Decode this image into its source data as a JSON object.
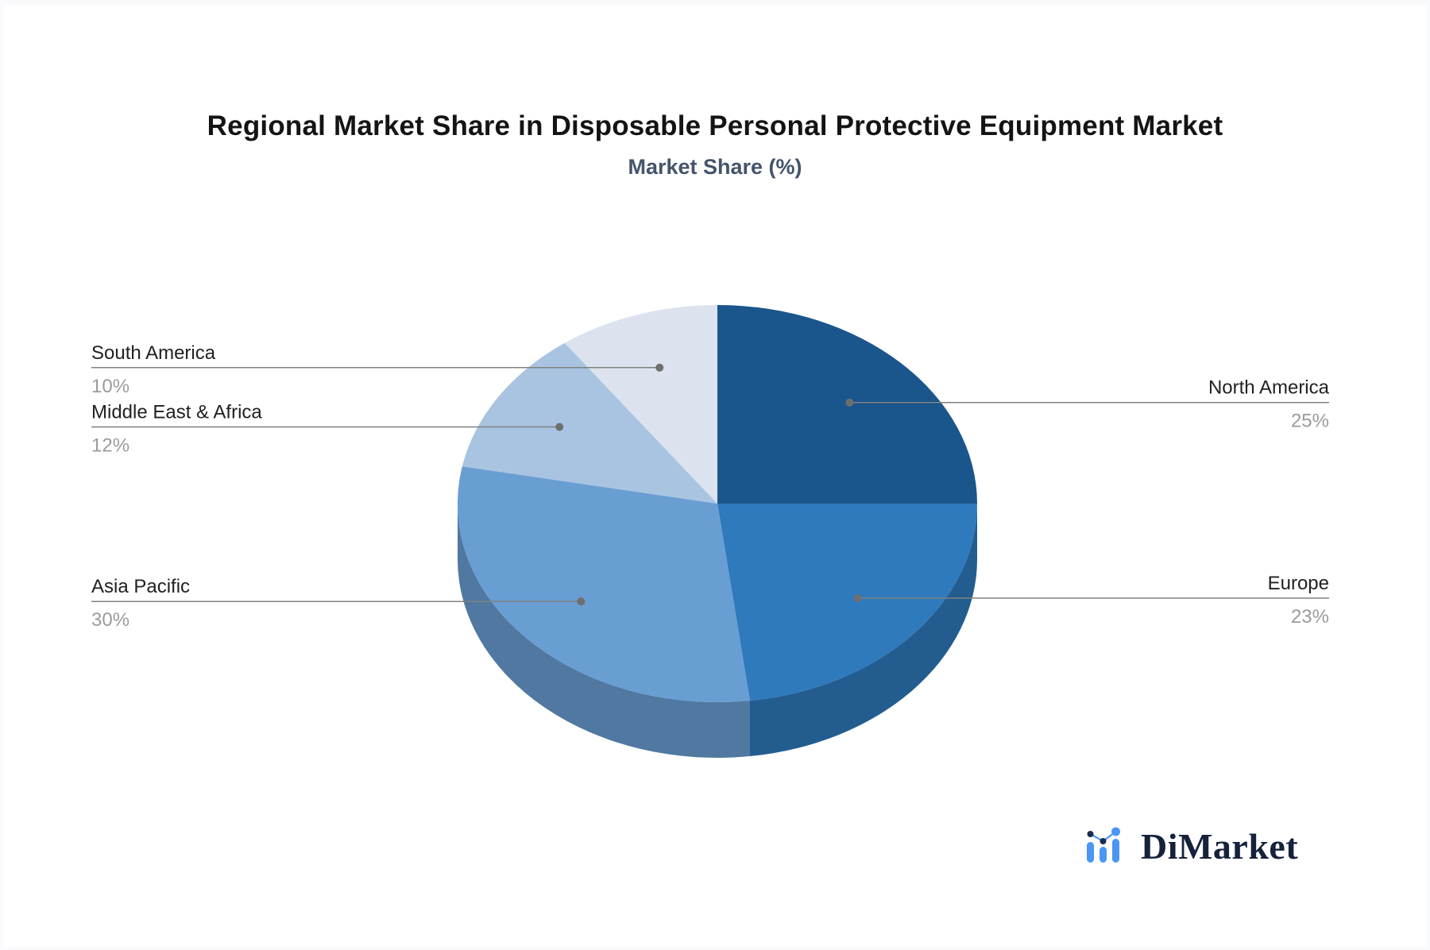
{
  "page": {
    "background": "#FFFFFF",
    "frame_color": "#F8FAFB"
  },
  "header": {
    "title": "Regional Market Share in Disposable Personal Protective Equipment Market",
    "subtitle": "Market Share (%)",
    "title_color": "#141414",
    "subtitle_color": "#44546A"
  },
  "chart_data": {
    "type": "pie",
    "style": "3d",
    "title": "Regional Market Share in Disposable Personal Protective Equipment Market",
    "subtitle": "Market Share (%)",
    "unit": "%",
    "start_angle_deg": 0,
    "direction": "clockwise",
    "legend": "none",
    "label_layout": "callout-lines",
    "labels": [
      "North America",
      "Europe",
      "Asia Pacific",
      "Middle East & Africa",
      "South America"
    ],
    "values": [
      25,
      23,
      30,
      12,
      10
    ],
    "colors": [
      "#1A568C",
      "#2E7ABD",
      "#699ED3",
      "#A9C4E1",
      "#DCE3EF"
    ],
    "label_sides": [
      "right",
      "right",
      "left",
      "left",
      "left"
    ],
    "leader_line_color": "#808080",
    "leader_dot_color": "#6F6F6F",
    "label_color": "#212121",
    "value_label_color": "#9B9B9B"
  },
  "branding": {
    "logo_text": "DiMarket",
    "logo_text_color": "#16213C",
    "logo_accent_color": "#4B96F3",
    "logo_dot_color": "#1B2C4F"
  }
}
